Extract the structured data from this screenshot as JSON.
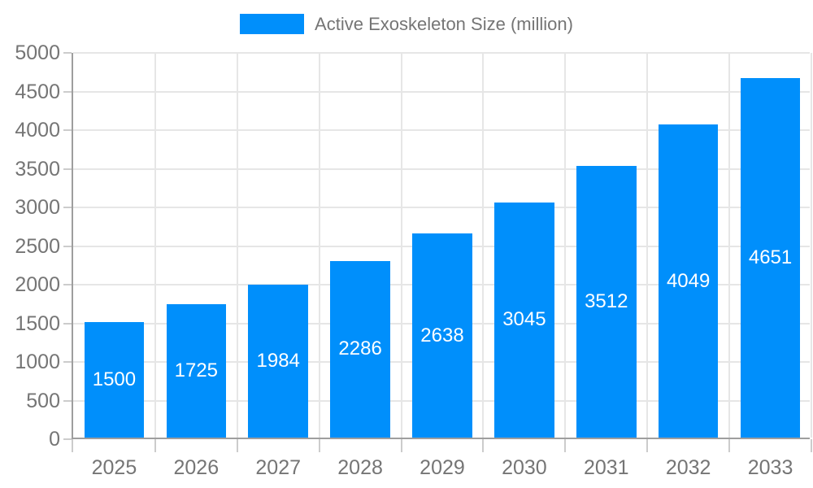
{
  "legend": {
    "items": [
      {
        "label": "Active Exoskeleton Size (million)",
        "color": "#008FFB"
      }
    ]
  },
  "chart_data": {
    "type": "bar",
    "title": "Active Exoskeleton Size (million)",
    "categories": [
      "2025",
      "2026",
      "2027",
      "2028",
      "2029",
      "2030",
      "2031",
      "2032",
      "2033"
    ],
    "values": [
      1500,
      1725,
      1984,
      2286,
      2638,
      3045,
      3512,
      4049,
      4651
    ],
    "xlabel": "",
    "ylabel": "",
    "ylim": [
      0,
      5000
    ],
    "yticks": [
      0,
      500,
      1000,
      1500,
      2000,
      2500,
      3000,
      3500,
      4000,
      4500,
      5000
    ],
    "grid": true,
    "legend_position": "top",
    "colors": {
      "bar": "#008FFB",
      "bar_label": "#FFFFFF",
      "axis_text": "#757575",
      "axis_line": "#9E9E9E",
      "gridline": "#E6E6E6",
      "tick": "#CCCCCC",
      "background": "#FFFFFF"
    }
  }
}
